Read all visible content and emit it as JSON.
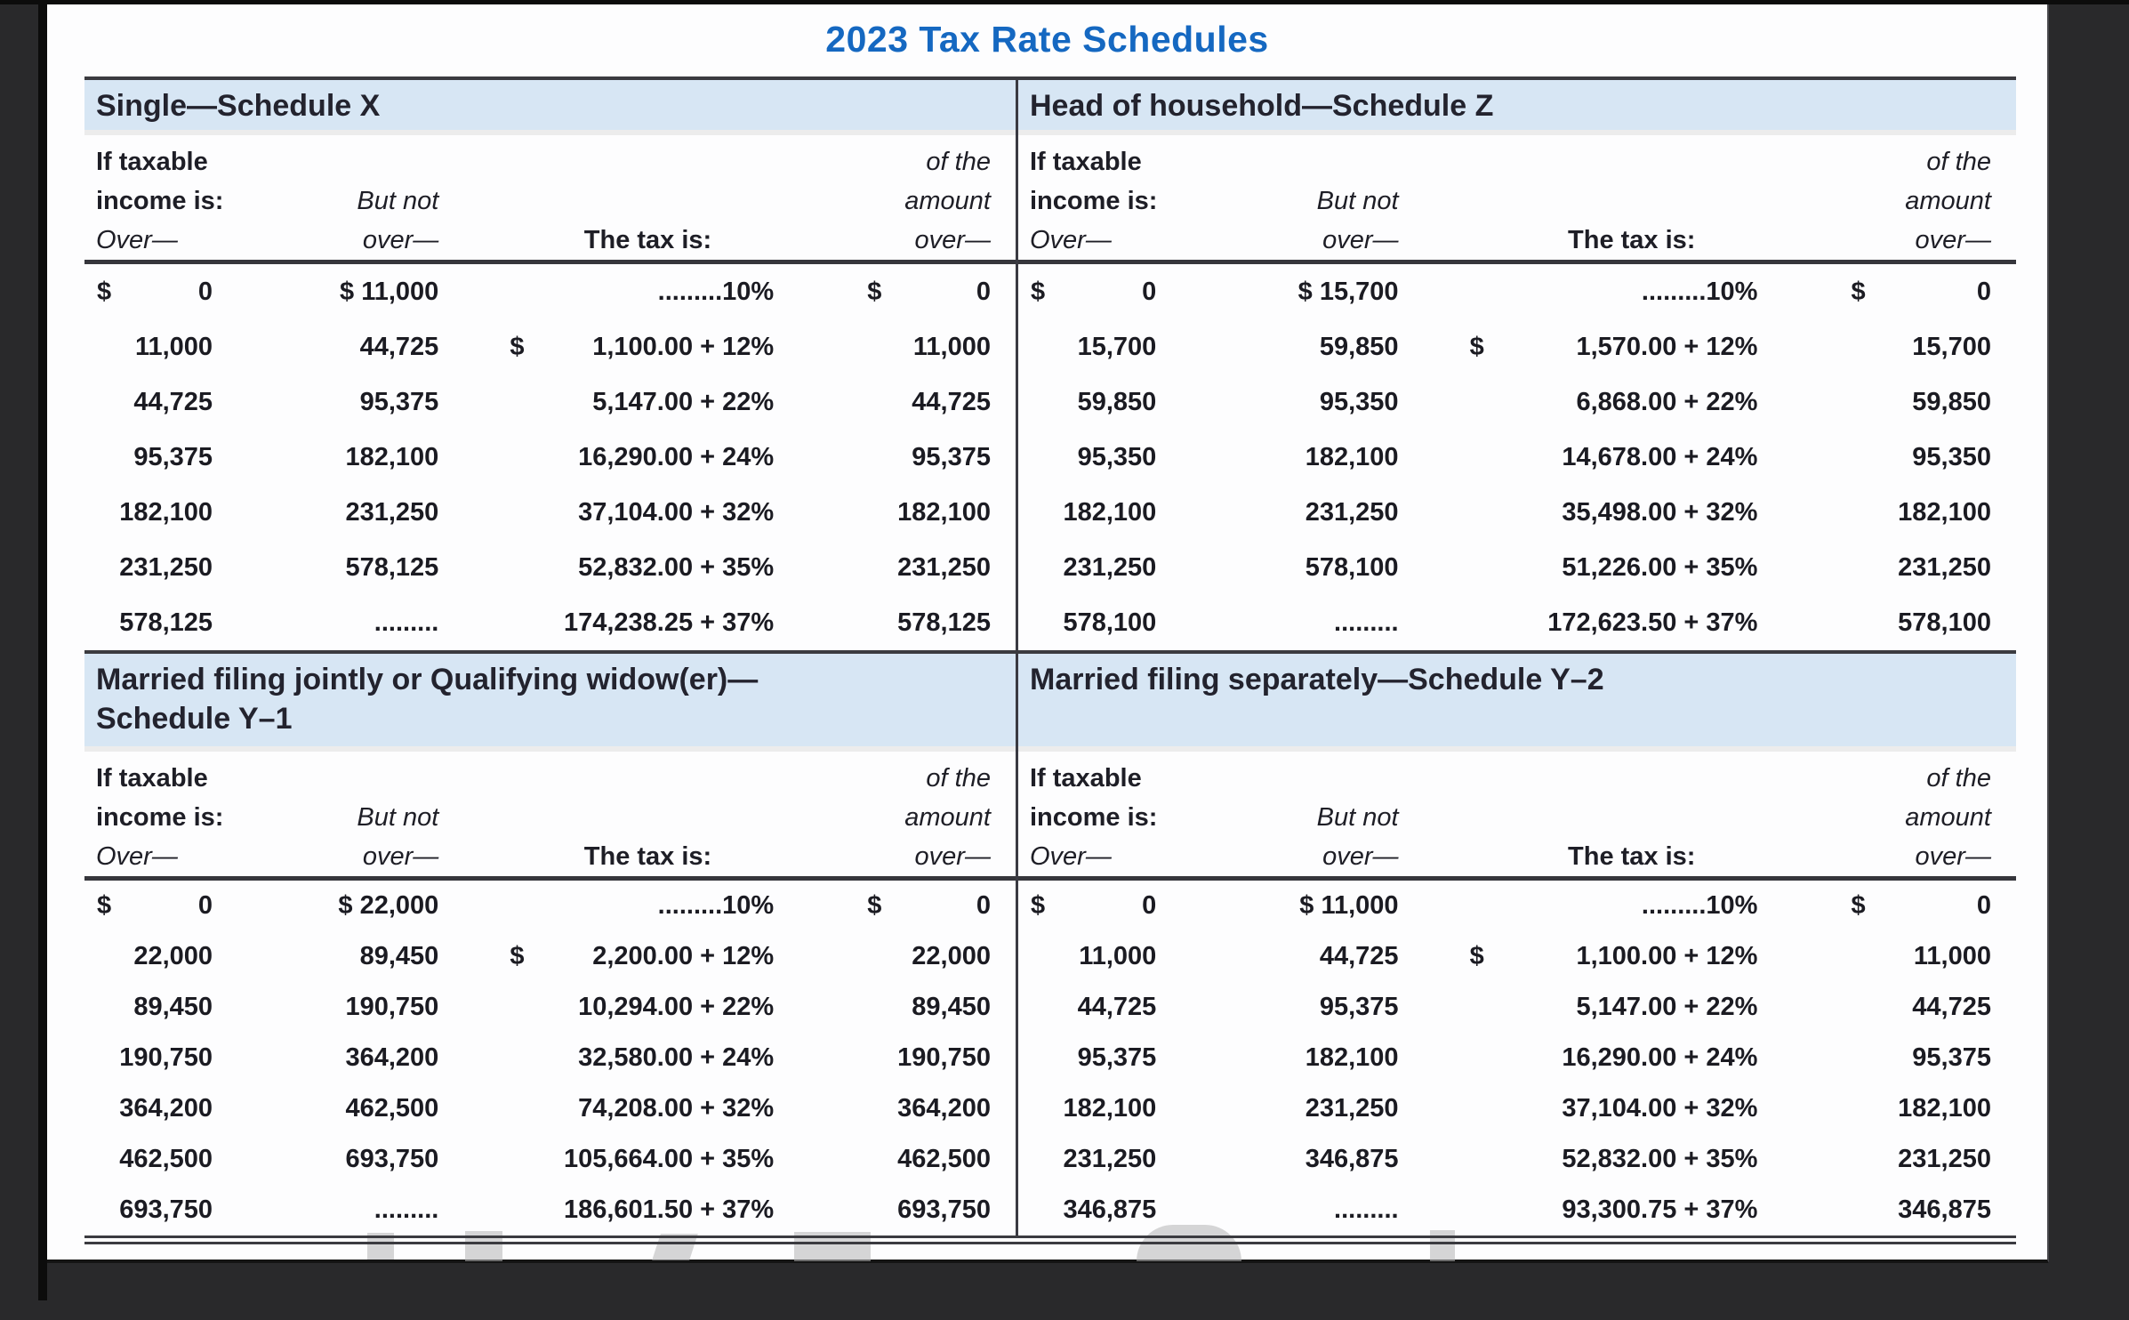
{
  "page_title": "2023 Tax Rate Schedules",
  "colors": {
    "title_blue": "#1568c1",
    "band_blue": "#d7e6f4",
    "text_dark": "#1e1e26",
    "rule_dark": "#3a3a40",
    "frame_background": "#29292b"
  },
  "headers": {
    "if_taxable": "If taxable",
    "income_is": "income is:",
    "over_left": "Over—",
    "but_not": "But not",
    "over_mid": "over—",
    "the_tax_is": "The tax is:",
    "of_the": "of the",
    "amount": "amount",
    "over_right": "over—"
  },
  "schedules": [
    {
      "name": "Single—Schedule X",
      "name_line2": "",
      "rows": [
        {
          "dollar1": "$",
          "over": "0",
          "but_not": "$ 11,000",
          "dollar3": "",
          "tax": ".........10%",
          "dollar4": "$",
          "amount": "0"
        },
        {
          "dollar1": "",
          "over": "11,000",
          "but_not": "44,725",
          "dollar3": "$",
          "tax": "1,100.00 + 12%",
          "dollar4": "",
          "amount": "11,000"
        },
        {
          "dollar1": "",
          "over": "44,725",
          "but_not": "95,375",
          "dollar3": "",
          "tax": "5,147.00 + 22%",
          "dollar4": "",
          "amount": "44,725"
        },
        {
          "dollar1": "",
          "over": "95,375",
          "but_not": "182,100",
          "dollar3": "",
          "tax": "16,290.00 + 24%",
          "dollar4": "",
          "amount": "95,375"
        },
        {
          "dollar1": "",
          "over": "182,100",
          "but_not": "231,250",
          "dollar3": "",
          "tax": "37,104.00 + 32%",
          "dollar4": "",
          "amount": "182,100"
        },
        {
          "dollar1": "",
          "over": "231,250",
          "but_not": "578,125",
          "dollar3": "",
          "tax": "52,832.00 + 35%",
          "dollar4": "",
          "amount": "231,250"
        },
        {
          "dollar1": "",
          "over": "578,125",
          "but_not": ".........",
          "dollar3": "",
          "tax": "174,238.25 + 37%",
          "dollar4": "",
          "amount": "578,125"
        }
      ]
    },
    {
      "name": "Head of household—Schedule Z",
      "name_line2": "",
      "rows": [
        {
          "dollar1": "$",
          "over": "0",
          "but_not": "$ 15,700",
          "dollar3": "",
          "tax": ".........10%",
          "dollar4": "$",
          "amount": "0"
        },
        {
          "dollar1": "",
          "over": "15,700",
          "but_not": "59,850",
          "dollar3": "$",
          "tax": "1,570.00 + 12%",
          "dollar4": "",
          "amount": "15,700"
        },
        {
          "dollar1": "",
          "over": "59,850",
          "but_not": "95,350",
          "dollar3": "",
          "tax": "6,868.00 + 22%",
          "dollar4": "",
          "amount": "59,850"
        },
        {
          "dollar1": "",
          "over": "95,350",
          "but_not": "182,100",
          "dollar3": "",
          "tax": "14,678.00 + 24%",
          "dollar4": "",
          "amount": "95,350"
        },
        {
          "dollar1": "",
          "over": "182,100",
          "but_not": "231,250",
          "dollar3": "",
          "tax": "35,498.00 + 32%",
          "dollar4": "",
          "amount": "182,100"
        },
        {
          "dollar1": "",
          "over": "231,250",
          "but_not": "578,100",
          "dollar3": "",
          "tax": "51,226.00 + 35%",
          "dollar4": "",
          "amount": "231,250"
        },
        {
          "dollar1": "",
          "over": "578,100",
          "but_not": ".........",
          "dollar3": "",
          "tax": "172,623.50 + 37%",
          "dollar4": "",
          "amount": "578,100"
        }
      ]
    },
    {
      "name": "Married filing jointly or Qualifying widow(er)—",
      "name_line2": "Schedule Y–1",
      "rows": [
        {
          "dollar1": "$",
          "over": "0",
          "but_not": "$ 22,000",
          "dollar3": "",
          "tax": ".........10%",
          "dollar4": "$",
          "amount": "0"
        },
        {
          "dollar1": "",
          "over": "22,000",
          "but_not": "89,450",
          "dollar3": "$",
          "tax": "2,200.00 + 12%",
          "dollar4": "",
          "amount": "22,000"
        },
        {
          "dollar1": "",
          "over": "89,450",
          "but_not": "190,750",
          "dollar3": "",
          "tax": "10,294.00 + 22%",
          "dollar4": "",
          "amount": "89,450"
        },
        {
          "dollar1": "",
          "over": "190,750",
          "but_not": "364,200",
          "dollar3": "",
          "tax": "32,580.00 + 24%",
          "dollar4": "",
          "amount": "190,750"
        },
        {
          "dollar1": "",
          "over": "364,200",
          "but_not": "462,500",
          "dollar3": "",
          "tax": "74,208.00 + 32%",
          "dollar4": "",
          "amount": "364,200"
        },
        {
          "dollar1": "",
          "over": "462,500",
          "but_not": "693,750",
          "dollar3": "",
          "tax": "105,664.00 + 35%",
          "dollar4": "",
          "amount": "462,500"
        },
        {
          "dollar1": "",
          "over": "693,750",
          "but_not": ".........",
          "dollar3": "",
          "tax": "186,601.50 + 37%",
          "dollar4": "",
          "amount": "693,750"
        }
      ]
    },
    {
      "name": "Married filing separately—Schedule Y–2",
      "name_line2": "",
      "rows": [
        {
          "dollar1": "$",
          "over": "0",
          "but_not": "$ 11,000",
          "dollar3": "",
          "tax": ".........10%",
          "dollar4": "$",
          "amount": "0"
        },
        {
          "dollar1": "",
          "over": "11,000",
          "but_not": "44,725",
          "dollar3": "$",
          "tax": "1,100.00 + 12%",
          "dollar4": "",
          "amount": "11,000"
        },
        {
          "dollar1": "",
          "over": "44,725",
          "but_not": "95,375",
          "dollar3": "",
          "tax": "5,147.00 + 22%",
          "dollar4": "",
          "amount": "44,725"
        },
        {
          "dollar1": "",
          "over": "95,375",
          "but_not": "182,100",
          "dollar3": "",
          "tax": "16,290.00 + 24%",
          "dollar4": "",
          "amount": "95,375"
        },
        {
          "dollar1": "",
          "over": "182,100",
          "but_not": "231,250",
          "dollar3": "",
          "tax": "37,104.00 + 32%",
          "dollar4": "",
          "amount": "182,100"
        },
        {
          "dollar1": "",
          "over": "231,250",
          "but_not": "346,875",
          "dollar3": "",
          "tax": "52,832.00 + 35%",
          "dollar4": "",
          "amount": "231,250"
        },
        {
          "dollar1": "",
          "over": "346,875",
          "but_not": ".........",
          "dollar3": "",
          "tax": "93,300.75 + 37%",
          "dollar4": "",
          "amount": "346,875"
        }
      ]
    }
  ]
}
